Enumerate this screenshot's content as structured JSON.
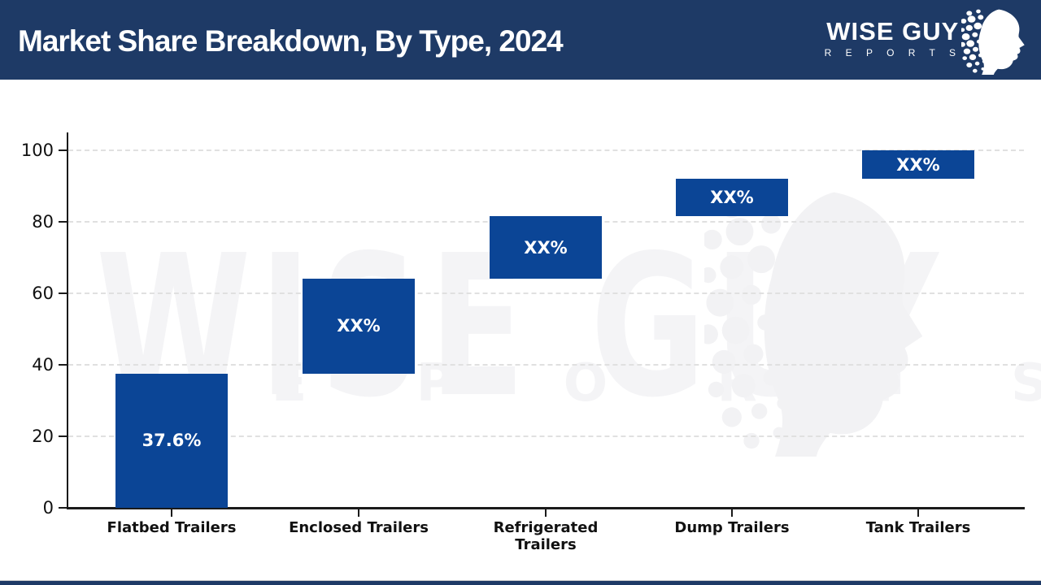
{
  "header": {
    "title": "Market Share Breakdown, By Type, 2024",
    "logo": {
      "line1": "WISE GUY",
      "line2": "R E P O R T S"
    }
  },
  "watermark": {
    "line1": "WISE GUY",
    "line2": "R E P O R T S"
  },
  "colors": {
    "header_bg": "#1e3a66",
    "bar": "#0b4596",
    "gridline": "#e0e0e0",
    "watermark": "#f2f2f4"
  },
  "chart_data": {
    "type": "bar",
    "subtype": "waterfall",
    "title": "Market Share Breakdown, By Type, 2024",
    "categories": [
      "Flatbed Trailers",
      "Enclosed Trailers",
      "Refrigerated\nTrailers",
      "Dump Trailers",
      "Tank Trailers"
    ],
    "segments": [
      {
        "start": 0,
        "end": 37.6,
        "label": "37.6%"
      },
      {
        "start": 37.6,
        "end": 64,
        "label": "XX%"
      },
      {
        "start": 64,
        "end": 81.5,
        "label": "XX%"
      },
      {
        "start": 81.5,
        "end": 92,
        "label": "XX%"
      },
      {
        "start": 92,
        "end": 100,
        "label": "XX%"
      }
    ],
    "yticks": [
      0,
      20,
      40,
      60,
      80,
      100
    ],
    "ytick_labels": [
      "0",
      "20",
      "40",
      "60",
      "80",
      "100"
    ],
    "ylim": [
      0,
      105
    ],
    "xlabel": "",
    "ylabel": "",
    "grid": "horizontal-dashed",
    "legend": "none",
    "bar_color": "#0b4596",
    "bar_label_color": "#ffffff"
  }
}
